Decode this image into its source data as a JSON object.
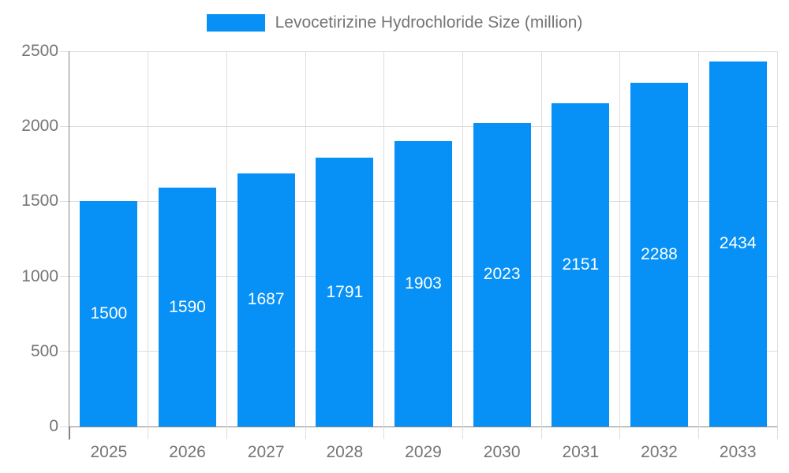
{
  "legend": {
    "label": "Levocetirizine Hydrochloride Size (million)",
    "swatch_color": "#0791f7"
  },
  "chart_data": {
    "type": "bar",
    "title": "",
    "categories": [
      "2025",
      "2026",
      "2027",
      "2028",
      "2029",
      "2030",
      "2031",
      "2032",
      "2033"
    ],
    "values": [
      1500,
      1590,
      1687,
      1791,
      1903,
      2023,
      2151,
      2288,
      2434
    ],
    "series_name": "Levocetirizine Hydrochloride Size (million)",
    "ylim": [
      0,
      2500
    ],
    "yticks": [
      0,
      500,
      1000,
      1500,
      2000,
      2500
    ],
    "grid": true,
    "legend_position": "top",
    "value_labels": "inside-center-white",
    "colors": {
      "bar": "#0791f7",
      "axis": "#848484",
      "grid": "#dddddd",
      "tick_label": "#757575",
      "value_label": "#ffffff",
      "background": "#ffffff"
    }
  }
}
